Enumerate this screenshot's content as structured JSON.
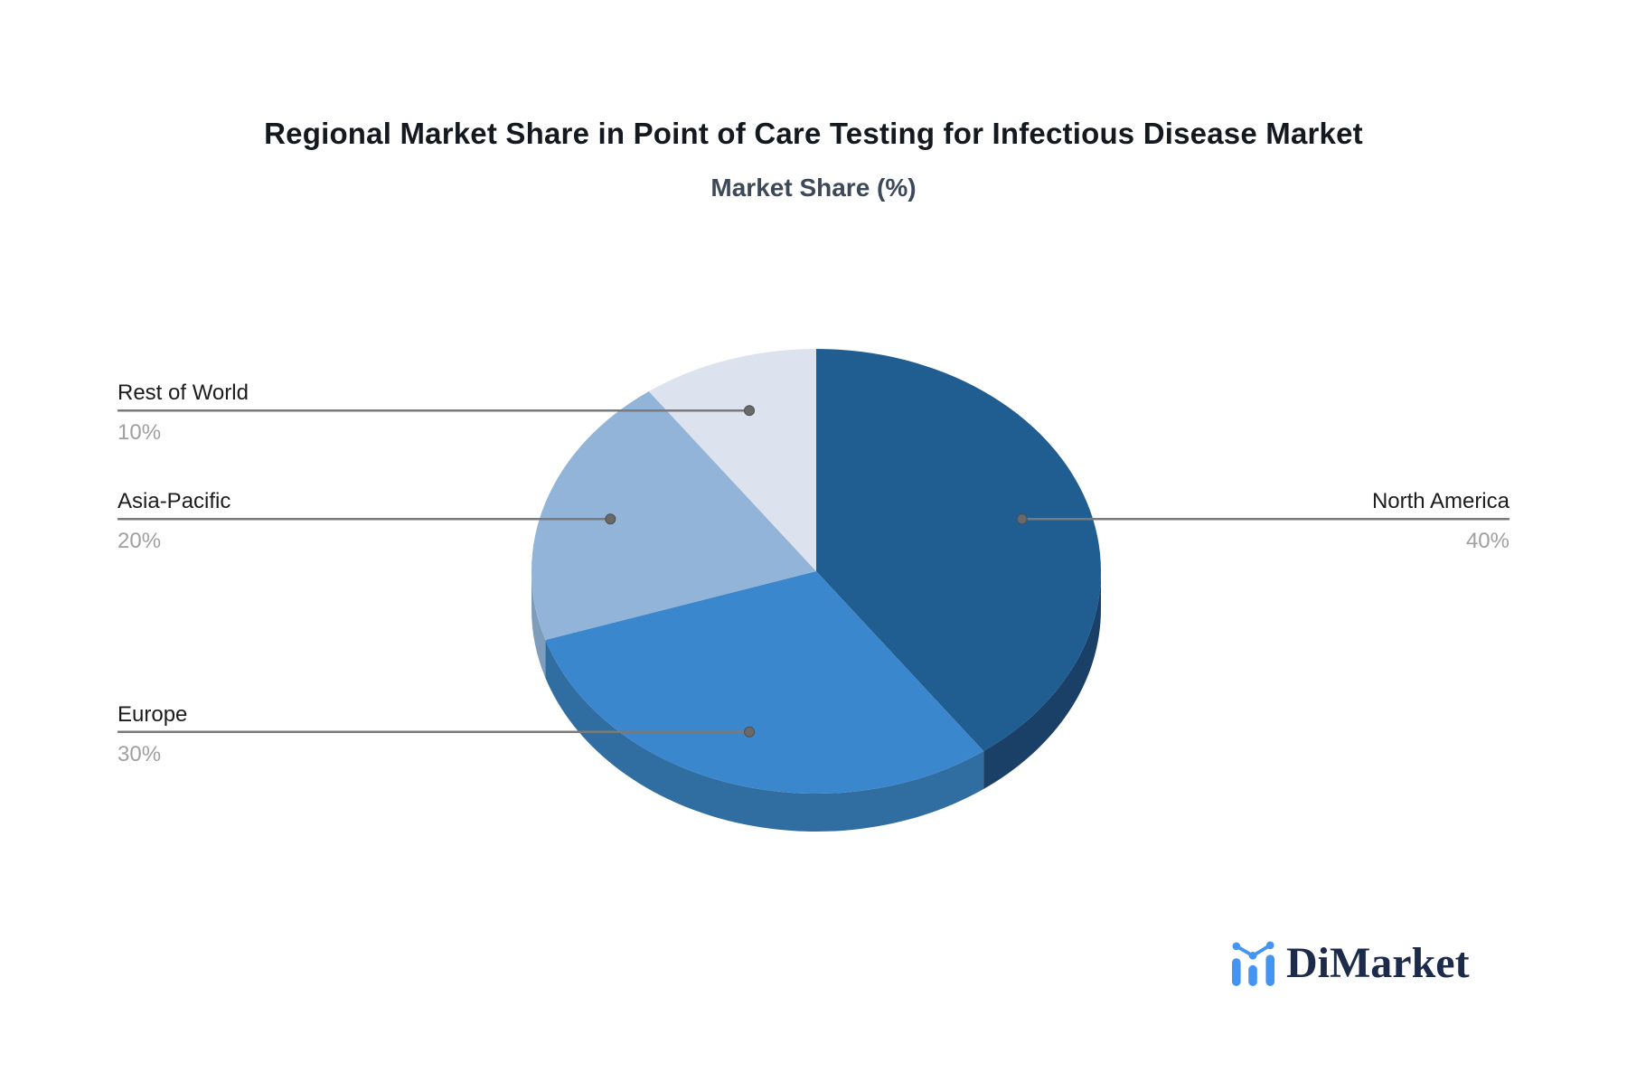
{
  "header": {
    "title": "Regional Market Share in Point of Care Testing for Infectious Disease Market",
    "subtitle": "Market Share (%)"
  },
  "branding": {
    "logo_text": "DiMarket",
    "logo_icon": "bar-chart-trend-icon",
    "logo_icon_color": "#4494f4",
    "logo_text_color": "#1d2b4b"
  },
  "chart_data": {
    "type": "pie",
    "style": "3d",
    "title": "Regional Market Share in Point of Care Testing for Infectious Disease Market",
    "subtitle": "Market Share (%)",
    "unit": "%",
    "start_angle_deg": 90,
    "direction": "clockwise",
    "legend_position": "callout-labels",
    "slices": [
      {
        "label": "North America",
        "value": 40,
        "display_value": "40%",
        "color": "#205d91",
        "side_color": "#1a4067",
        "label_side": "right"
      },
      {
        "label": "Europe",
        "value": 30,
        "display_value": "30%",
        "color": "#3a87cd",
        "side_color": "#306da1",
        "label_side": "left"
      },
      {
        "label": "Asia-Pacific",
        "value": 20,
        "display_value": "20%",
        "color": "#92b4d8",
        "side_color": "#7e9dbc",
        "label_side": "left"
      },
      {
        "label": "Rest of World",
        "value": 10,
        "display_value": "10%",
        "color": "#dde3ee",
        "side_color": "#c6cfdf",
        "label_side": "left"
      }
    ],
    "label_text_color": "#1c1c1c",
    "value_text_color": "#a0a0a0",
    "leader_line_color": "#7a7a7a",
    "leader_dot_color": "#696969"
  }
}
